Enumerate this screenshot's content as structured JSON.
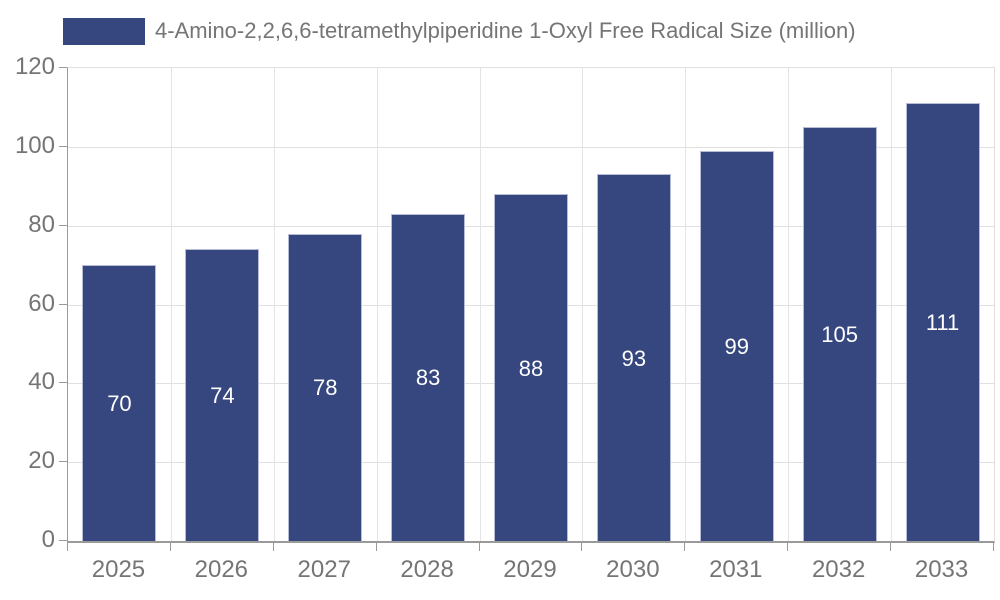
{
  "chart_data": {
    "type": "bar",
    "title": "",
    "legend_label": "4-Amino-2,2,6,6-tetramethylpiperidine 1-Oxyl Free Radical Size (million)",
    "categories": [
      "2025",
      "2026",
      "2027",
      "2028",
      "2029",
      "2030",
      "2031",
      "2032",
      "2033"
    ],
    "values": [
      70,
      74,
      78,
      83,
      88,
      93,
      99,
      105,
      111
    ],
    "xlabel": "",
    "ylabel": "",
    "ylim": [
      0,
      120
    ],
    "y_ticks": [
      0,
      20,
      40,
      60,
      80,
      100,
      120
    ],
    "grid": true,
    "legend_position": "top-left",
    "colors": {
      "bar_fill": "#35477E",
      "bar_border": "#C4C9E0",
      "bar_label_text": "#FFFFFF",
      "axis_line": "#9A9A9A",
      "gridline": "#E0E0E0",
      "tick_text": "#757575",
      "background": "#FFFFFF"
    }
  }
}
